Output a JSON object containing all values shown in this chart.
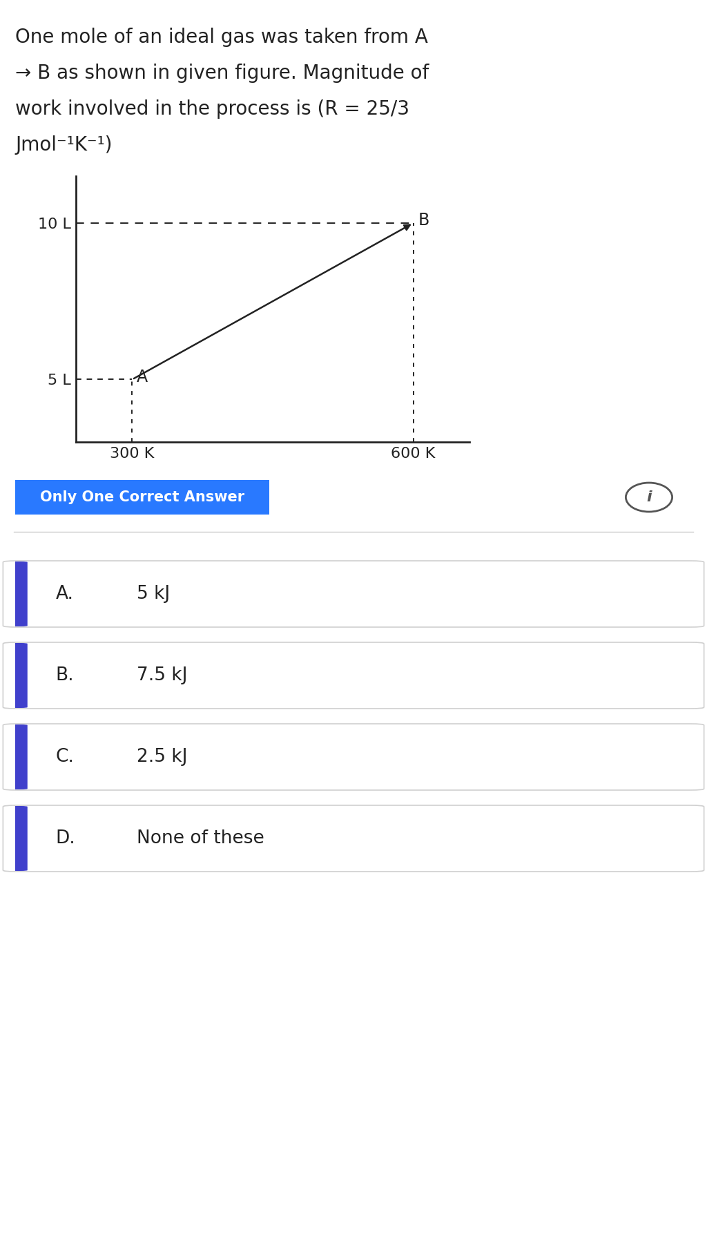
{
  "title_lines": [
    "One mole of an ideal gas was taken from A",
    "→ B as shown in given figure. Magnitude of",
    "work involved in the process is (R = 25/3",
    "Jmol⁻¹K⁻¹)"
  ],
  "point_A": [
    300,
    5
  ],
  "point_B": [
    600,
    10
  ],
  "x_tick_labels": [
    "300 K",
    "600 K"
  ],
  "y_tick_labels": [
    "5 L",
    "10 L"
  ],
  "graph_bg": "#ffffff",
  "page_bg": "#f7f7f7",
  "content_bg": "#ffffff",
  "line_color": "#222222",
  "dashed_color": "#222222",
  "button_color": "#2979ff",
  "button_text": "Only One Correct Answer",
  "button_text_color": "#ffffff",
  "options": [
    {
      "label": "A.",
      "text": "5 kJ"
    },
    {
      "label": "B.",
      "text": "7.5 kJ"
    },
    {
      "label": "C.",
      "text": "2.5 kJ"
    },
    {
      "label": "D.",
      "text": "None of these"
    }
  ],
  "option_border_color": "#d0d0d0",
  "option_bg": "#ffffff",
  "option_text_color": "#222222",
  "info_icon_color": "#555555",
  "separator_color": "#cccccc",
  "left_bar_color": "#4040cc",
  "title_fontsize": 20,
  "option_fontsize": 19,
  "graph_label_fontsize": 17,
  "graph_tick_fontsize": 16
}
